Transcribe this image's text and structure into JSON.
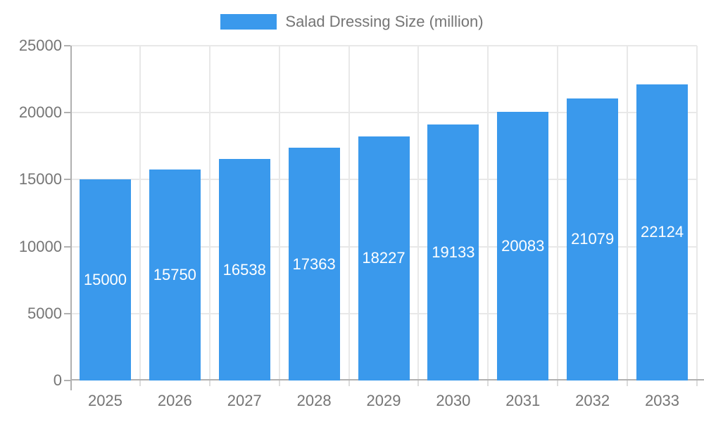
{
  "chart_data": {
    "type": "bar",
    "title": "Salad Dressing Size (million)",
    "legend": [
      "Salad Dressing Size (million)"
    ],
    "legend_position": "top",
    "categories": [
      "2025",
      "2026",
      "2027",
      "2028",
      "2029",
      "2030",
      "2031",
      "2032",
      "2033"
    ],
    "values": [
      15000,
      15750,
      16538,
      17363,
      18227,
      19133,
      20083,
      21079,
      22124
    ],
    "xlabel": "",
    "ylabel": "",
    "ylim": [
      0,
      25000
    ],
    "yticks": [
      0,
      5000,
      10000,
      15000,
      20000,
      25000
    ],
    "grid": true,
    "bar_labels_visible": true
  },
  "colors": {
    "bar": "#3A99EC",
    "bar_label_text": "#FFFFFF",
    "axis_text": "#757575",
    "gridline": "#E8E8E8",
    "axis_line": "#B0B0B0",
    "boundary_tick": "#DCDCDC",
    "background": "#FFFFFF"
  }
}
